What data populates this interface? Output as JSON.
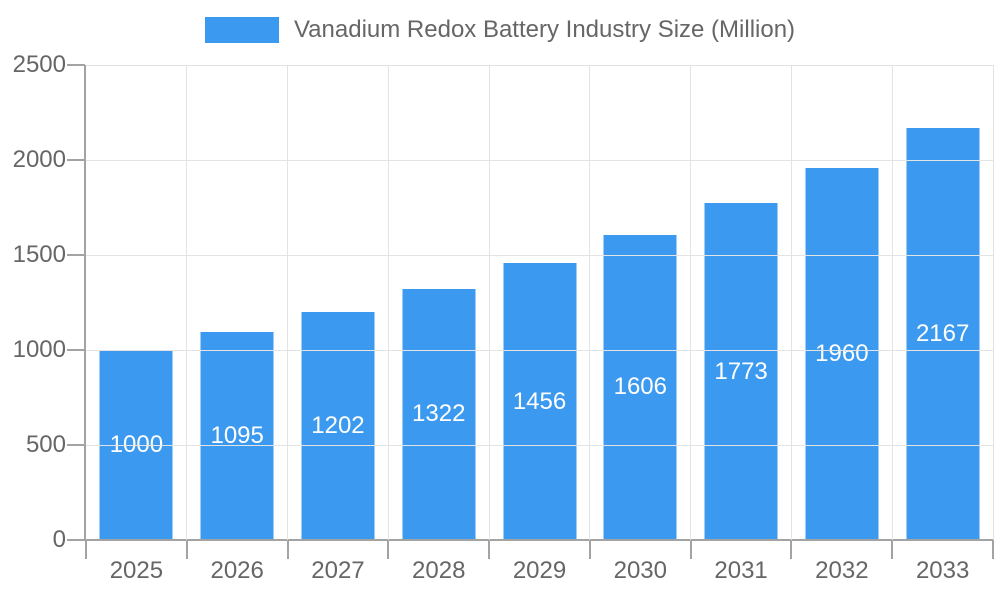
{
  "chart_data": {
    "type": "bar",
    "title": "Vanadium Redox Battery Industry Size (Million)",
    "categories": [
      "2025",
      "2026",
      "2027",
      "2028",
      "2029",
      "2030",
      "2031",
      "2032",
      "2033"
    ],
    "values": [
      1000,
      1095,
      1202,
      1322,
      1456,
      1606,
      1773,
      1960,
      2167
    ],
    "yticks": [
      2500,
      2000,
      1500,
      1000,
      500,
      0
    ],
    "ylim": [
      0,
      2500
    ],
    "grid": true,
    "legend_position": "top-center",
    "value_label_style": "white text centered inside bars",
    "colors": {
      "bar": "#3B9AEF",
      "grid": "#E3E3E3",
      "axis": "#A3A3A3",
      "tick": "#A3A3A3",
      "text": "#666666",
      "value_text": "#FFFFFF",
      "background": "#FFFFFF"
    }
  }
}
